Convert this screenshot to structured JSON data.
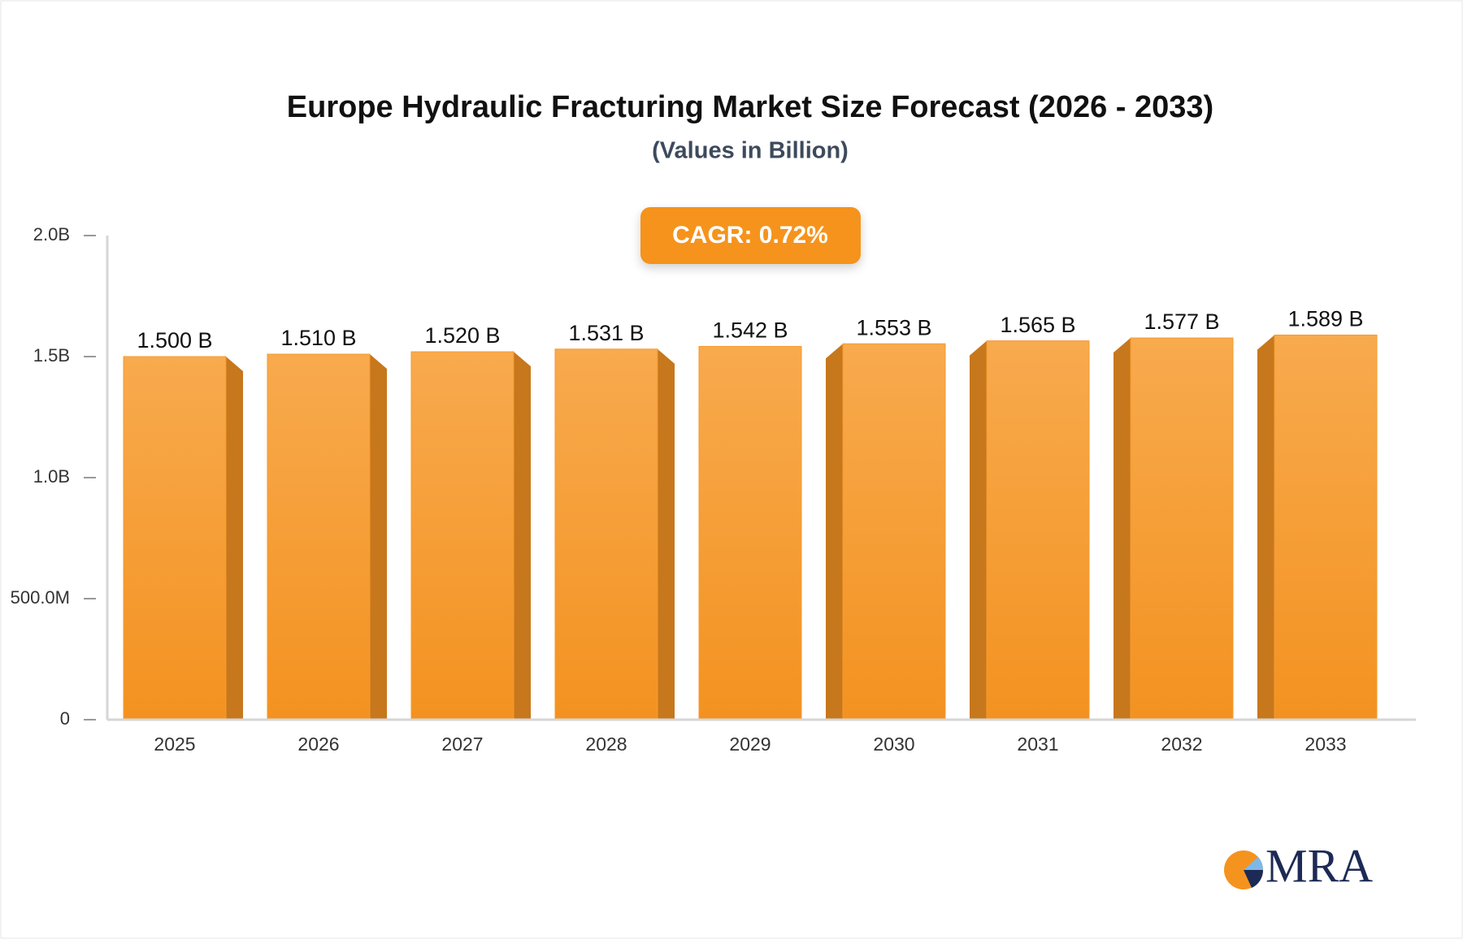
{
  "chart_data": {
    "type": "bar",
    "title": "Europe Hydraulic Fracturing Market Size Forecast (2026 - 2033)",
    "subtitle": "(Values in Billion)",
    "annotation": "CAGR: 0.72%",
    "logo": "MRA",
    "categories": [
      "2025",
      "2026",
      "2027",
      "2028",
      "2029",
      "2030",
      "2031",
      "2032",
      "2033"
    ],
    "values": [
      1500000000,
      1510000000,
      1520000000,
      1531000000,
      1542000000,
      1553000000,
      1565000000,
      1577000000,
      1589000000
    ],
    "value_labels": [
      "1.500 B",
      "1.510 B",
      "1.520 B",
      "1.531 B",
      "1.542 B",
      "1.553 B",
      "1.565 B",
      "1.577 B",
      "1.589 B"
    ],
    "color": "#f59a2e",
    "ylim": [
      0,
      2000000000
    ],
    "yticks": [
      0,
      {
        "value": 500000000,
        "label": "500.0M"
      },
      {
        "value": 1000000000,
        "label": "1.0B"
      },
      {
        "value": 1500000000,
        "label": "1.5B"
      },
      {
        "value": 2000000000,
        "label": "2.0B"
      }
    ],
    "grid": false
  }
}
